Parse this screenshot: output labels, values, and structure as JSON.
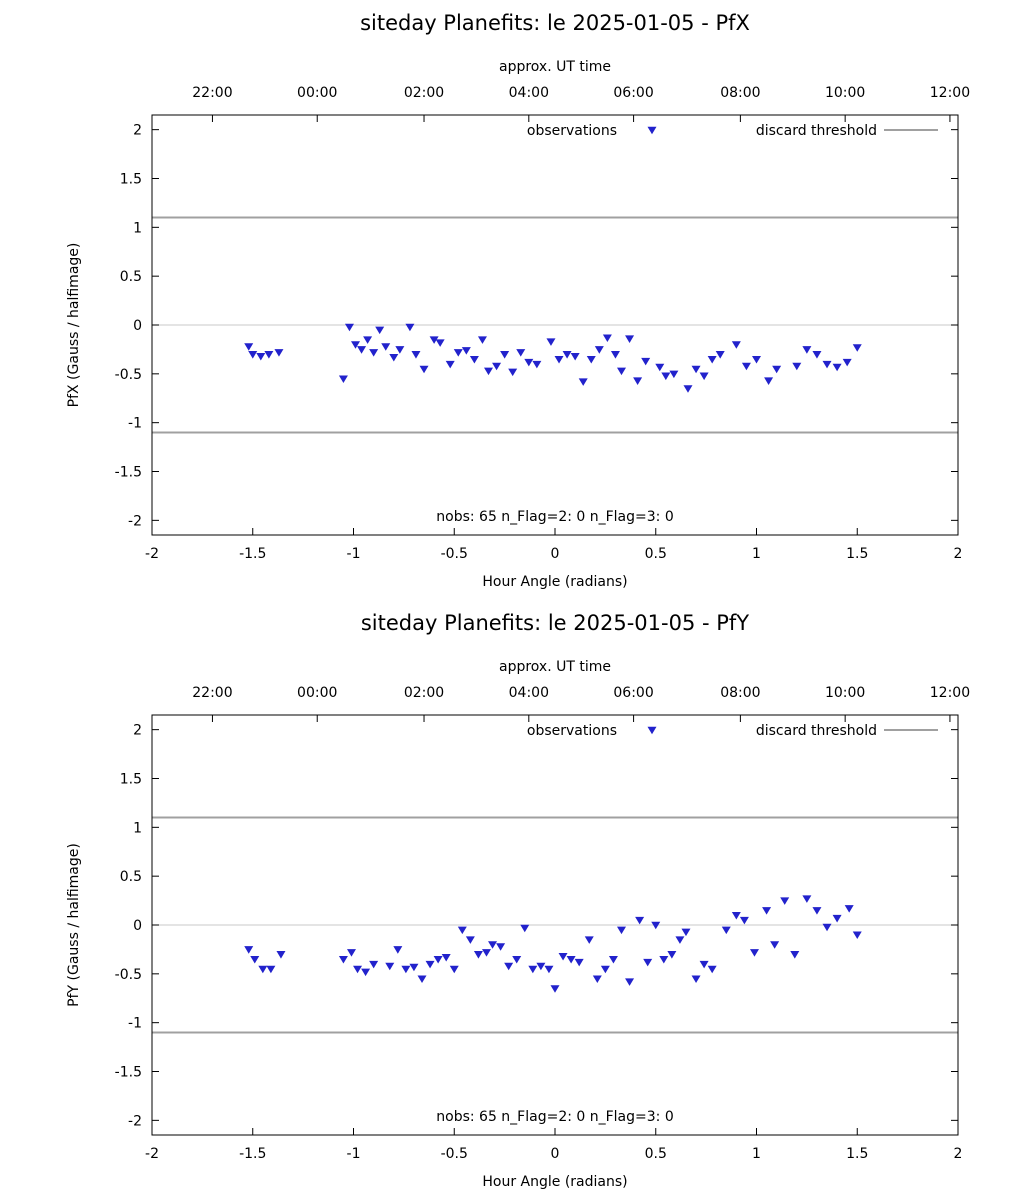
{
  "page": {
    "background": "#ffffff"
  },
  "chart_data": [
    {
      "type": "scatter",
      "title": "siteday Planefits:  le  2025-01-05  -  PfX",
      "top_axis_title": "approx. UT time",
      "top_axis_ticks": [
        {
          "label": "22:00",
          "x": -1.7
        },
        {
          "label": "00:00",
          "x": -1.18
        },
        {
          "label": "02:00",
          "x": -0.65
        },
        {
          "label": "04:00",
          "x": -0.13
        },
        {
          "label": "06:00",
          "x": 0.39
        },
        {
          "label": "08:00",
          "x": 0.92
        },
        {
          "label": "10:00",
          "x": 1.44
        },
        {
          "label": "12:00",
          "x": 1.96
        }
      ],
      "xlabel": "Hour Angle (radians)",
      "ylabel": "PfX (Gauss / halfimage)",
      "xlim": [
        -2,
        2
      ],
      "ylim": [
        -2.15,
        2.15
      ],
      "xticks": [
        -2,
        -1.5,
        -1,
        -0.5,
        0,
        0.5,
        1,
        1.5,
        2
      ],
      "xtick_labels": [
        "-2",
        "-1.5",
        "-1",
        "-0.5",
        "0",
        "0.5",
        "1",
        "1.5",
        "2"
      ],
      "yticks": [
        -2,
        -1.5,
        -1,
        -0.5,
        0,
        0.5,
        1,
        1.5,
        2
      ],
      "ytick_labels": [
        "-2",
        "-1.5",
        "-1",
        "-0.5",
        "0",
        "0.5",
        "1",
        "1.5",
        "2"
      ],
      "threshold": 1.1,
      "zero_line": 0,
      "legend": [
        {
          "label": "observations",
          "type": "point"
        },
        {
          "label": "discard threshold",
          "type": "line"
        }
      ],
      "annotation": "nobs: 65   n_Flag=2: 0   n_Flag=3: 0",
      "colors": {
        "marker": "#2222cc",
        "threshold": "#a0a0a0",
        "zero": "#c8c8c8",
        "border": "#000000"
      },
      "points": [
        [
          -1.52,
          -0.22
        ],
        [
          -1.5,
          -0.3
        ],
        [
          -1.46,
          -0.32
        ],
        [
          -1.42,
          -0.3
        ],
        [
          -1.37,
          -0.28
        ],
        [
          -1.05,
          -0.55
        ],
        [
          -1.02,
          -0.02
        ],
        [
          -0.99,
          -0.2
        ],
        [
          -0.96,
          -0.25
        ],
        [
          -0.93,
          -0.15
        ],
        [
          -0.9,
          -0.28
        ],
        [
          -0.87,
          -0.05
        ],
        [
          -0.84,
          -0.22
        ],
        [
          -0.8,
          -0.33
        ],
        [
          -0.77,
          -0.25
        ],
        [
          -0.72,
          -0.02
        ],
        [
          -0.69,
          -0.3
        ],
        [
          -0.65,
          -0.45
        ],
        [
          -0.6,
          -0.15
        ],
        [
          -0.57,
          -0.18
        ],
        [
          -0.52,
          -0.4
        ],
        [
          -0.48,
          -0.28
        ],
        [
          -0.44,
          -0.26
        ],
        [
          -0.4,
          -0.35
        ],
        [
          -0.36,
          -0.15
        ],
        [
          -0.33,
          -0.47
        ],
        [
          -0.29,
          -0.42
        ],
        [
          -0.25,
          -0.3
        ],
        [
          -0.21,
          -0.48
        ],
        [
          -0.17,
          -0.28
        ],
        [
          -0.13,
          -0.38
        ],
        [
          -0.09,
          -0.4
        ],
        [
          -0.02,
          -0.17
        ],
        [
          0.02,
          -0.35
        ],
        [
          0.06,
          -0.3
        ],
        [
          0.1,
          -0.32
        ],
        [
          0.14,
          -0.58
        ],
        [
          0.18,
          -0.35
        ],
        [
          0.22,
          -0.25
        ],
        [
          0.26,
          -0.13
        ],
        [
          0.3,
          -0.3
        ],
        [
          0.33,
          -0.47
        ],
        [
          0.37,
          -0.14
        ],
        [
          0.41,
          -0.57
        ],
        [
          0.45,
          -0.37
        ],
        [
          0.52,
          -0.43
        ],
        [
          0.55,
          -0.52
        ],
        [
          0.59,
          -0.5
        ],
        [
          0.66,
          -0.65
        ],
        [
          0.7,
          -0.45
        ],
        [
          0.74,
          -0.52
        ],
        [
          0.78,
          -0.35
        ],
        [
          0.82,
          -0.3
        ],
        [
          0.9,
          -0.2
        ],
        [
          0.95,
          -0.42
        ],
        [
          1.0,
          -0.35
        ],
        [
          1.06,
          -0.57
        ],
        [
          1.1,
          -0.45
        ],
        [
          1.2,
          -0.42
        ],
        [
          1.25,
          -0.25
        ],
        [
          1.3,
          -0.3
        ],
        [
          1.35,
          -0.4
        ],
        [
          1.4,
          -0.43
        ],
        [
          1.45,
          -0.38
        ],
        [
          1.5,
          -0.23
        ]
      ]
    },
    {
      "type": "scatter",
      "title": "siteday Planefits:  le  2025-01-05  -  PfY",
      "top_axis_title": "approx. UT time",
      "top_axis_ticks": [
        {
          "label": "22:00",
          "x": -1.7
        },
        {
          "label": "00:00",
          "x": -1.18
        },
        {
          "label": "02:00",
          "x": -0.65
        },
        {
          "label": "04:00",
          "x": -0.13
        },
        {
          "label": "06:00",
          "x": 0.39
        },
        {
          "label": "08:00",
          "x": 0.92
        },
        {
          "label": "10:00",
          "x": 1.44
        },
        {
          "label": "12:00",
          "x": 1.96
        }
      ],
      "xlabel": "Hour Angle (radians)",
      "ylabel": "PfY (Gauss / halfimage)",
      "xlim": [
        -2,
        2
      ],
      "ylim": [
        -2.15,
        2.15
      ],
      "xticks": [
        -2,
        -1.5,
        -1,
        -0.5,
        0,
        0.5,
        1,
        1.5,
        2
      ],
      "xtick_labels": [
        "-2",
        "-1.5",
        "-1",
        "-0.5",
        "0",
        "0.5",
        "1",
        "1.5",
        "2"
      ],
      "yticks": [
        -2,
        -1.5,
        -1,
        -0.5,
        0,
        0.5,
        1,
        1.5,
        2
      ],
      "ytick_labels": [
        "-2",
        "-1.5",
        "-1",
        "-0.5",
        "0",
        "0.5",
        "1",
        "1.5",
        "2"
      ],
      "threshold": 1.1,
      "zero_line": 0,
      "legend": [
        {
          "label": "observations",
          "type": "point"
        },
        {
          "label": "discard threshold",
          "type": "line"
        }
      ],
      "annotation": "nobs: 65   n_Flag=2: 0   n_Flag=3: 0",
      "colors": {
        "marker": "#2222cc",
        "threshold": "#a0a0a0",
        "zero": "#c8c8c8",
        "border": "#000000"
      },
      "points": [
        [
          -1.52,
          -0.25
        ],
        [
          -1.49,
          -0.35
        ],
        [
          -1.45,
          -0.45
        ],
        [
          -1.41,
          -0.45
        ],
        [
          -1.36,
          -0.3
        ],
        [
          -1.05,
          -0.35
        ],
        [
          -1.01,
          -0.28
        ],
        [
          -0.98,
          -0.45
        ],
        [
          -0.94,
          -0.48
        ],
        [
          -0.9,
          -0.4
        ],
        [
          -0.82,
          -0.42
        ],
        [
          -0.78,
          -0.25
        ],
        [
          -0.74,
          -0.45
        ],
        [
          -0.7,
          -0.43
        ],
        [
          -0.66,
          -0.55
        ],
        [
          -0.62,
          -0.4
        ],
        [
          -0.58,
          -0.35
        ],
        [
          -0.54,
          -0.33
        ],
        [
          -0.5,
          -0.45
        ],
        [
          -0.46,
          -0.05
        ],
        [
          -0.42,
          -0.15
        ],
        [
          -0.38,
          -0.3
        ],
        [
          -0.34,
          -0.28
        ],
        [
          -0.31,
          -0.2
        ],
        [
          -0.27,
          -0.22
        ],
        [
          -0.23,
          -0.42
        ],
        [
          -0.19,
          -0.35
        ],
        [
          -0.15,
          -0.03
        ],
        [
          -0.11,
          -0.45
        ],
        [
          -0.07,
          -0.42
        ],
        [
          -0.03,
          -0.45
        ],
        [
          0.0,
          -0.65
        ],
        [
          0.04,
          -0.32
        ],
        [
          0.08,
          -0.35
        ],
        [
          0.12,
          -0.38
        ],
        [
          0.17,
          -0.15
        ],
        [
          0.21,
          -0.55
        ],
        [
          0.25,
          -0.45
        ],
        [
          0.29,
          -0.35
        ],
        [
          0.33,
          -0.05
        ],
        [
          0.37,
          -0.58
        ],
        [
          0.42,
          0.05
        ],
        [
          0.46,
          -0.38
        ],
        [
          0.5,
          0.0
        ],
        [
          0.54,
          -0.35
        ],
        [
          0.58,
          -0.3
        ],
        [
          0.62,
          -0.15
        ],
        [
          0.65,
          -0.07
        ],
        [
          0.7,
          -0.55
        ],
        [
          0.74,
          -0.4
        ],
        [
          0.78,
          -0.45
        ],
        [
          0.85,
          -0.05
        ],
        [
          0.9,
          0.1
        ],
        [
          0.94,
          0.05
        ],
        [
          0.99,
          -0.28
        ],
        [
          1.05,
          0.15
        ],
        [
          1.09,
          -0.2
        ],
        [
          1.14,
          0.25
        ],
        [
          1.19,
          -0.3
        ],
        [
          1.25,
          0.27
        ],
        [
          1.3,
          0.15
        ],
        [
          1.35,
          -0.02
        ],
        [
          1.4,
          0.07
        ],
        [
          1.46,
          0.17
        ],
        [
          1.5,
          -0.1
        ]
      ]
    }
  ]
}
